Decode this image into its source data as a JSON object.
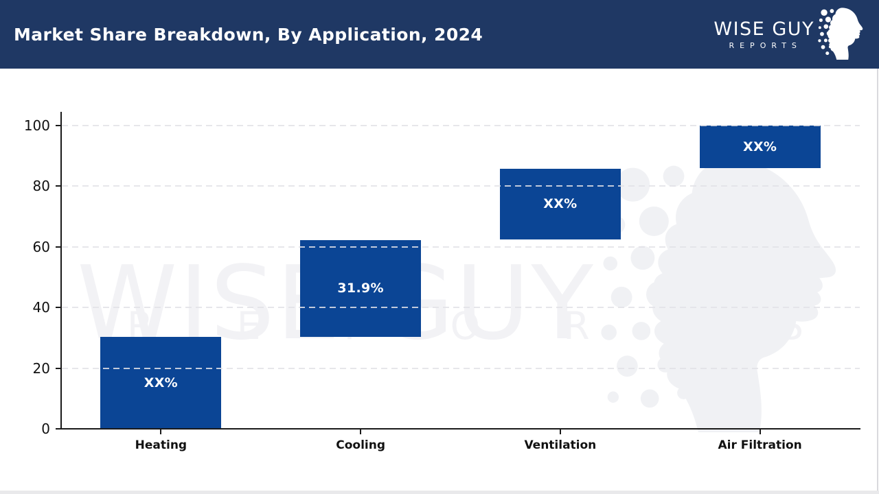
{
  "header": {
    "title": "Market Share Breakdown, By Application, 2024",
    "logo": {
      "line1": "WISE GUY",
      "line2": "REPORTS"
    }
  },
  "watermark": {
    "line1": "WISE GUY",
    "line2": "R E P O R T S"
  },
  "colors": {
    "header_bg": "#1f3864",
    "bar": "#0b4595",
    "axis": "#1a1a1a",
    "grid": "#e6e6ea",
    "watermark": "#f2f2f5",
    "value_label": "#ffffff"
  },
  "chart_data": {
    "type": "bar",
    "subtype": "floating-waterfall",
    "title": "Market Share Breakdown, By Application, 2024",
    "categories": [
      "Heating",
      "Cooling",
      "Ventilation",
      "Air Filtration"
    ],
    "segments": [
      {
        "category": "Heating",
        "start": 0,
        "end": 30.4,
        "label": "XX%"
      },
      {
        "category": "Cooling",
        "start": 30.4,
        "end": 62.3,
        "label": "31.9%"
      },
      {
        "category": "Ventilation",
        "start": 62.5,
        "end": 85.8,
        "label": "XX%"
      },
      {
        "category": "Air Filtration",
        "start": 85.9,
        "end": 100,
        "label": "XX%"
      }
    ],
    "xlabel": "",
    "ylabel": "",
    "yticks": [
      0,
      20,
      40,
      60,
      80,
      100
    ],
    "ylim": [
      0,
      104.5
    ],
    "grid": {
      "horizontal": true,
      "style": "dashed"
    },
    "legend": "none",
    "bar_color": "#0b4595",
    "value_label_color": "#ffffff"
  }
}
